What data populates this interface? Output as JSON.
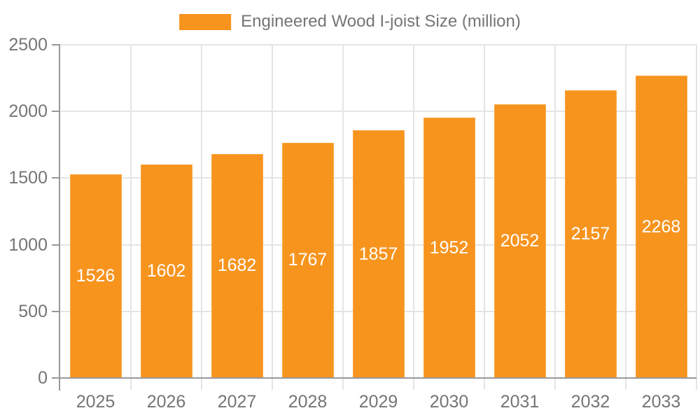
{
  "chart_data": {
    "type": "bar",
    "title": "Engineered Wood I-joist Size (million)",
    "categories": [
      "2025",
      "2026",
      "2027",
      "2028",
      "2029",
      "2030",
      "2031",
      "2032",
      "2033"
    ],
    "values": [
      1526,
      1602,
      1682,
      1767,
      1857,
      1952,
      2052,
      2157,
      2268
    ],
    "xlabel": "",
    "ylabel": "",
    "ylim": [
      0,
      2500
    ],
    "yticks": [
      0,
      500,
      1000,
      1500,
      2000,
      2500
    ],
    "grid": true,
    "legend_position": "top",
    "value_labels_position": "inside-center",
    "colors": {
      "bar": "#F7941E",
      "bar_edge": "#F9A845",
      "bar_label": "#FFFFFF",
      "axis": "#999999",
      "grid": "#E4E4E4",
      "text": "#757575"
    }
  }
}
